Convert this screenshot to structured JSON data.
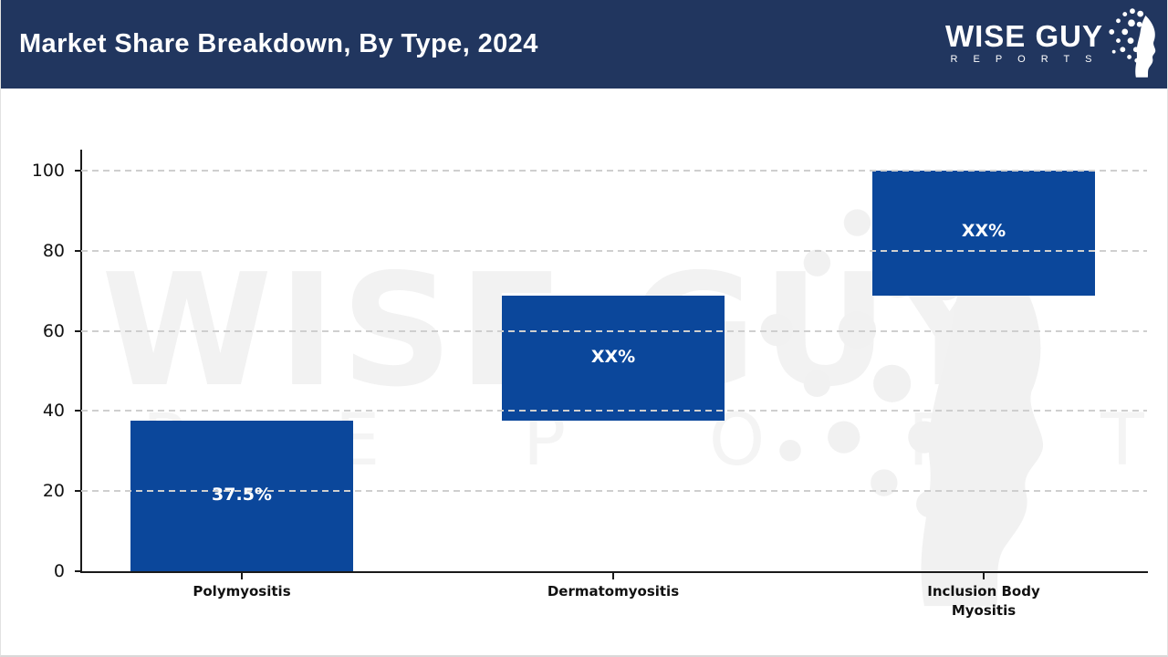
{
  "header": {
    "title": "Market Share Breakdown, By Type, 2024",
    "bg_color": "#21365f",
    "logo": {
      "name": "WISE GUY",
      "sub": "R E P O R T S"
    }
  },
  "watermark": {
    "line1": "WISE GUY",
    "line2": "R E P O R T S"
  },
  "chart_data": {
    "type": "bar",
    "variant": "floating-segment-waterfall",
    "title": "Market Share Breakdown, By Type, 2024",
    "categories": [
      "Polymyositis",
      "Dermatomyositis",
      "Inclusion Body\nMyositis"
    ],
    "bars": [
      {
        "category": "Polymyositis",
        "start": 0,
        "end": 37.5,
        "label": "37.5%"
      },
      {
        "category": "Dermatomyositis",
        "start": 37.5,
        "end": 68.8,
        "label": "XX%"
      },
      {
        "category": "Inclusion Body Myositis",
        "start": 68.8,
        "end": 100,
        "label": "XX%"
      }
    ],
    "xlabel": "",
    "ylabel": "",
    "ylim": [
      0,
      105
    ],
    "yticks": [
      0,
      20,
      40,
      60,
      80,
      100
    ],
    "grid": "horizontal-dashed",
    "gridline_color": "#cfcfcf",
    "bar_color": "#0b479b",
    "value_label_color": "#ffffff",
    "axis_color": "#1a1a1a",
    "legend": "none"
  }
}
